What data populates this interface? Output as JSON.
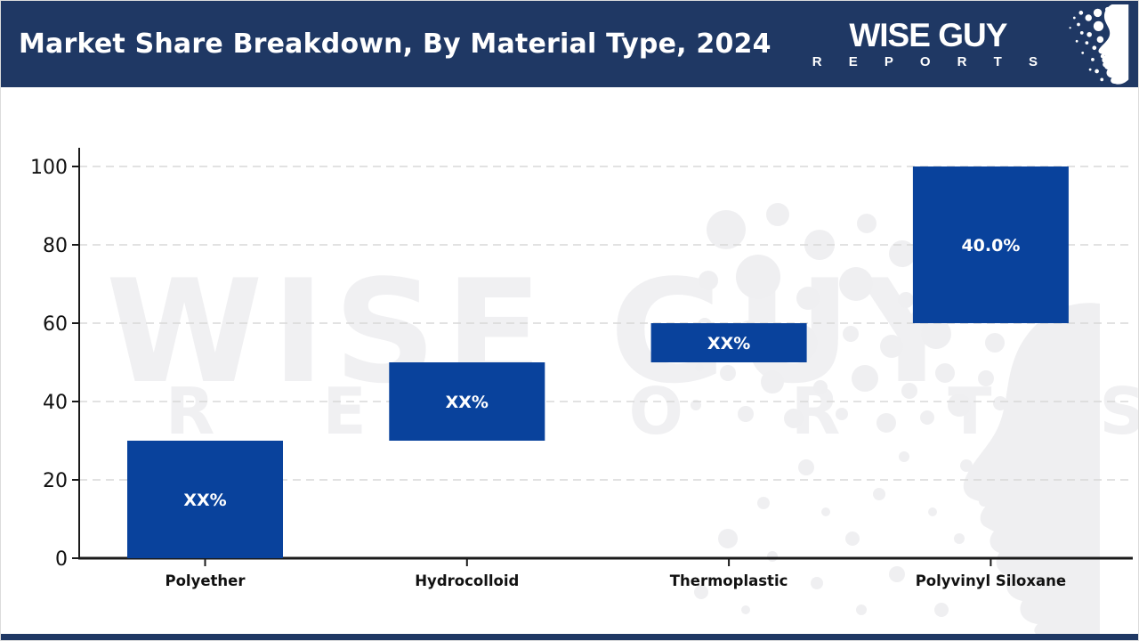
{
  "header": {
    "title": "Market Share Breakdown, By Material Type, 2024",
    "bg_color": "#1f3864",
    "logo": {
      "name": "WISE GUY",
      "tagline": "R E P O R T S"
    }
  },
  "watermark": {
    "line1": "WISE GUY",
    "line2": "R E P O R T S"
  },
  "footer": {
    "bg_color": "#1f3864"
  },
  "chart_data": {
    "type": "bar",
    "subtype": "waterfall",
    "title": "Market Share Breakdown, By Material Type, 2024",
    "categories": [
      "Polyether",
      "Hydrocolloid",
      "Thermoplastic",
      "Polyvinyl Siloxane"
    ],
    "segments": [
      {
        "category": "Polyether",
        "start": 0,
        "end": 30,
        "value": 30,
        "label": "XX%"
      },
      {
        "category": "Hydrocolloid",
        "start": 30,
        "end": 50,
        "value": 20,
        "label": "XX%"
      },
      {
        "category": "Thermoplastic",
        "start": 50,
        "end": 60,
        "value": 10,
        "label": "XX%"
      },
      {
        "category": "Polyvinyl Siloxane",
        "start": 60,
        "end": 100,
        "value": 40,
        "label": "40.0%"
      }
    ],
    "y_ticks": [
      0,
      20,
      40,
      60,
      80,
      100
    ],
    "ylim": [
      0,
      105
    ],
    "xlabel": "",
    "ylabel": "",
    "grid": "horizontal-dashed",
    "legend": "none",
    "bar_color": "#09429c",
    "bar_label_color": "#ffffff",
    "axis_color": "#1a1a1a",
    "grid_color": "#d8d8d8"
  }
}
